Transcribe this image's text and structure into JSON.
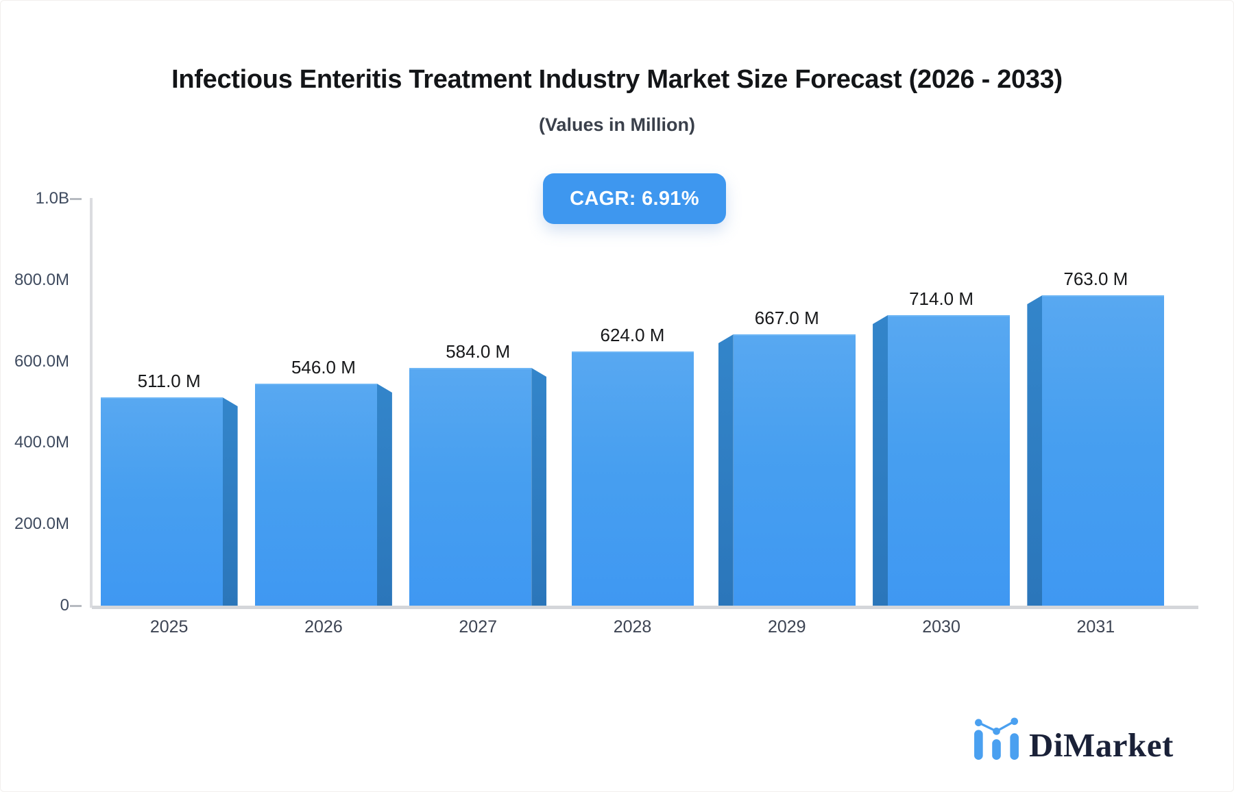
{
  "header": {
    "title": "Infectious Enteritis Treatment Industry Market Size Forecast (2026 - 2033)",
    "subtitle": "(Values in Million)",
    "cagr_label": "CAGR: 6.91%"
  },
  "chart_data": {
    "type": "bar",
    "title": "Infectious Enteritis Treatment Industry Market Size Forecast (2026 - 2033)",
    "subtitle": "(Values in Million)",
    "categories": [
      "2025",
      "2026",
      "2027",
      "2028",
      "2029",
      "2030",
      "2031"
    ],
    "values": [
      511,
      546,
      584,
      624,
      667,
      714,
      763
    ],
    "value_labels": [
      "511.0 M",
      "546.0 M",
      "584.0 M",
      "624.0 M",
      "667.0 M",
      "714.0 M",
      "763.0 M"
    ],
    "cagr_percent": 6.91,
    "ylim": [
      0,
      1000
    ],
    "y_ticks": [
      {
        "label": "1.0B",
        "value": 1000
      },
      {
        "label": "800.0M",
        "value": 800
      },
      {
        "label": "600.0M",
        "value": 600
      },
      {
        "label": "400.0M",
        "value": 400
      },
      {
        "label": "200.0M",
        "value": 200
      },
      {
        "label": "0",
        "value": 0
      }
    ],
    "grid": false,
    "legend": "none",
    "style": "3d-beveled-bars-facing-center"
  },
  "colors": {
    "bar_top": "#58a8f1",
    "bar_bottom": "#3f98f2",
    "bar_side": "#2e7cc0",
    "accent": "#3e97ef",
    "axis_line": "#d6d8dc",
    "title_text": "#131518",
    "label_text": "#3e4a5e",
    "brand_navy": "#1a2138",
    "brand_blue": "#4aa0f0"
  },
  "footer": {
    "brand": "DiMarket",
    "logo_icon": "bar-chart-trend-icon"
  }
}
